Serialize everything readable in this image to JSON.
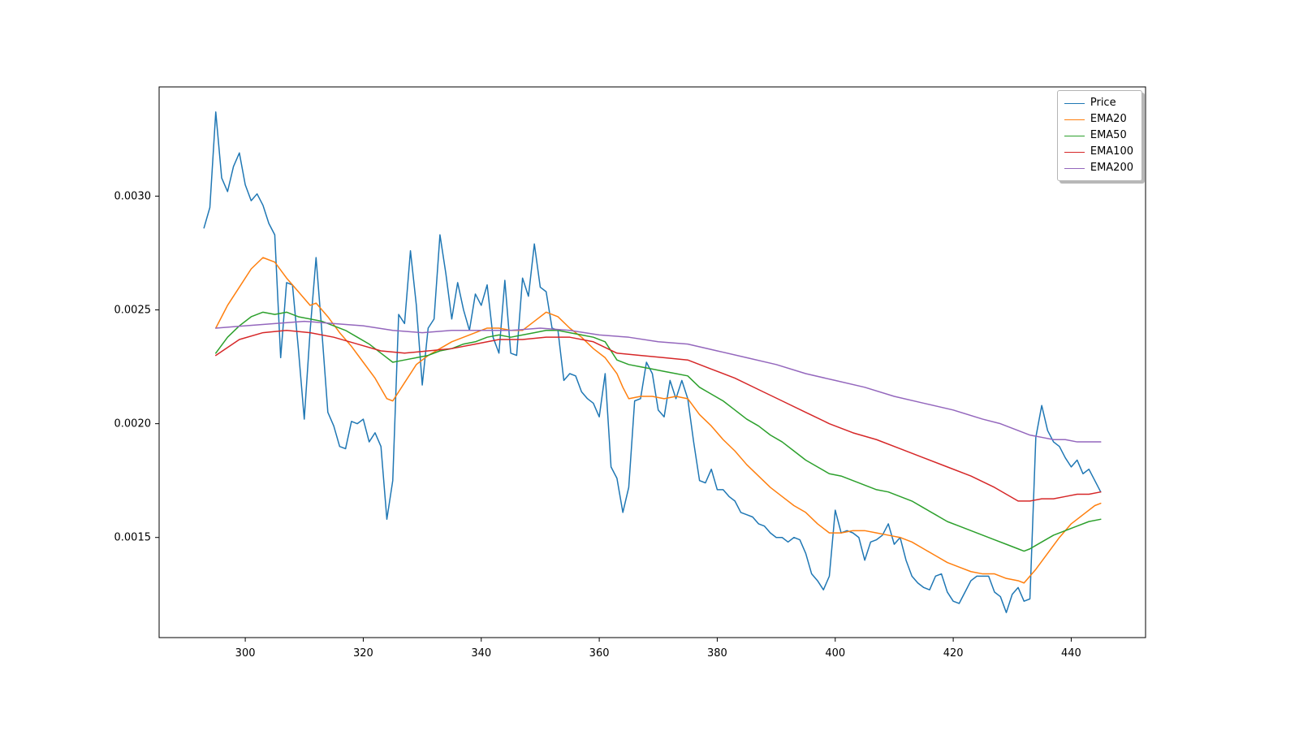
{
  "figure": {
    "background": "#ffffff",
    "axis_color": "#000000",
    "tick_font_size": 13,
    "legend_font_size": 13
  },
  "chart_data": {
    "type": "line",
    "title": "",
    "xlabel": "",
    "ylabel": "",
    "grid": false,
    "legend_position": "upper right",
    "xlim": [
      285.4,
      452.6
    ],
    "ylim": [
      0.00106,
      0.00348
    ],
    "x_ticks": [
      300,
      320,
      340,
      360,
      380,
      400,
      420,
      440
    ],
    "x_tick_labels": [
      "300",
      "320",
      "340",
      "360",
      "380",
      "400",
      "420",
      "440"
    ],
    "y_ticks": [
      0.0015,
      0.002,
      0.0025,
      0.003
    ],
    "y_tick_labels": [
      "0.0015",
      "0.0020",
      "0.0025",
      "0.0030"
    ],
    "series": [
      {
        "name": "Price",
        "color": "#1f77b4",
        "x_start": 293,
        "x_step": 1,
        "values": [
          0.00286,
          0.00295,
          0.00337,
          0.00308,
          0.00302,
          0.00313,
          0.00319,
          0.00305,
          0.00298,
          0.00301,
          0.00296,
          0.00288,
          0.00283,
          0.00229,
          0.00262,
          0.00261,
          0.00233,
          0.00202,
          0.00241,
          0.00273,
          0.0024,
          0.00205,
          0.00199,
          0.0019,
          0.00189,
          0.00201,
          0.002,
          0.00202,
          0.00192,
          0.00196,
          0.0019,
          0.00158,
          0.00175,
          0.00248,
          0.00244,
          0.00276,
          0.00252,
          0.00217,
          0.00242,
          0.00246,
          0.00283,
          0.00266,
          0.00246,
          0.00262,
          0.0025,
          0.00241,
          0.00257,
          0.00252,
          0.00261,
          0.00238,
          0.00231,
          0.00263,
          0.00231,
          0.0023,
          0.00264,
          0.00256,
          0.00279,
          0.0026,
          0.00258,
          0.00242,
          0.00241,
          0.00219,
          0.00222,
          0.00221,
          0.00214,
          0.00211,
          0.00209,
          0.00203,
          0.00222,
          0.00181,
          0.00176,
          0.00161,
          0.00172,
          0.0021,
          0.00211,
          0.00227,
          0.00222,
          0.00206,
          0.00203,
          0.00219,
          0.00211,
          0.00219,
          0.00211,
          0.00192,
          0.00175,
          0.00174,
          0.0018,
          0.00171,
          0.00171,
          0.00168,
          0.00166,
          0.00161,
          0.0016,
          0.00159,
          0.00156,
          0.00155,
          0.00152,
          0.0015,
          0.0015,
          0.00148,
          0.0015,
          0.00149,
          0.00143,
          0.00134,
          0.00131,
          0.00127,
          0.00133,
          0.00162,
          0.00152,
          0.00153,
          0.00152,
          0.0015,
          0.0014,
          0.00148,
          0.00149,
          0.00151,
          0.00156,
          0.00147,
          0.0015,
          0.0014,
          0.00133,
          0.0013,
          0.00128,
          0.00127,
          0.00133,
          0.00134,
          0.00126,
          0.00122,
          0.00121,
          0.00126,
          0.00131,
          0.00133,
          0.00133,
          0.00133,
          0.00126,
          0.00124,
          0.00117,
          0.00125,
          0.00128,
          0.00122,
          0.00123,
          0.00194,
          0.00208,
          0.00197,
          0.00192,
          0.0019,
          0.00185,
          0.00181,
          0.00184,
          0.00178,
          0.0018,
          0.00175,
          0.0017
        ]
      },
      {
        "name": "EMA20",
        "color": "#ff7f0e",
        "x": [
          295,
          297,
          299,
          301,
          303,
          305,
          307,
          309,
          311,
          312,
          314,
          316,
          318,
          320,
          322,
          324,
          325,
          327,
          329,
          331,
          333,
          335,
          337,
          339,
          341,
          343,
          345,
          347,
          349,
          351,
          353,
          355,
          357,
          359,
          361,
          363,
          364,
          365,
          367,
          369,
          371,
          373,
          375,
          377,
          379,
          381,
          383,
          385,
          387,
          389,
          391,
          393,
          395,
          397,
          399,
          401,
          403,
          405,
          407,
          409,
          411,
          413,
          415,
          417,
          419,
          421,
          423,
          425,
          427,
          429,
          431,
          432,
          434,
          436,
          438,
          440,
          442,
          444,
          445
        ],
        "y": [
          0.00242,
          0.00252,
          0.0026,
          0.00268,
          0.00273,
          0.00271,
          0.00264,
          0.00258,
          0.00252,
          0.00253,
          0.00247,
          0.0024,
          0.00234,
          0.00227,
          0.0022,
          0.00211,
          0.0021,
          0.00218,
          0.00226,
          0.0023,
          0.00233,
          0.00236,
          0.00238,
          0.0024,
          0.00242,
          0.00242,
          0.00241,
          0.00241,
          0.00245,
          0.00249,
          0.00247,
          0.00242,
          0.00238,
          0.00233,
          0.00229,
          0.00222,
          0.00216,
          0.00211,
          0.00212,
          0.00212,
          0.00211,
          0.00212,
          0.00211,
          0.00204,
          0.00199,
          0.00193,
          0.00188,
          0.00182,
          0.00177,
          0.00172,
          0.00168,
          0.00164,
          0.00161,
          0.00156,
          0.00152,
          0.00152,
          0.00153,
          0.00153,
          0.00152,
          0.00151,
          0.0015,
          0.00148,
          0.00145,
          0.00142,
          0.00139,
          0.00137,
          0.00135,
          0.00134,
          0.00134,
          0.00132,
          0.00131,
          0.0013,
          0.00136,
          0.00143,
          0.0015,
          0.00156,
          0.0016,
          0.00164,
          0.00165
        ]
      },
      {
        "name": "EMA50",
        "color": "#2ca02c",
        "x": [
          295,
          297,
          299,
          301,
          303,
          305,
          307,
          309,
          311,
          313,
          315,
          317,
          319,
          321,
          323,
          325,
          327,
          329,
          331,
          333,
          335,
          337,
          339,
          341,
          343,
          345,
          347,
          349,
          351,
          353,
          355,
          357,
          359,
          361,
          363,
          365,
          367,
          369,
          371,
          373,
          375,
          377,
          379,
          381,
          383,
          385,
          387,
          389,
          391,
          393,
          395,
          397,
          399,
          401,
          403,
          405,
          407,
          409,
          411,
          413,
          415,
          417,
          419,
          421,
          423,
          425,
          427,
          429,
          431,
          432,
          433,
          435,
          437,
          439,
          441,
          443,
          445
        ],
        "y": [
          0.00231,
          0.00238,
          0.00243,
          0.00247,
          0.00249,
          0.00248,
          0.00249,
          0.00247,
          0.00246,
          0.00245,
          0.00243,
          0.00241,
          0.00238,
          0.00235,
          0.00231,
          0.00227,
          0.00228,
          0.00229,
          0.0023,
          0.00232,
          0.00233,
          0.00235,
          0.00236,
          0.00238,
          0.00239,
          0.00238,
          0.00239,
          0.0024,
          0.00241,
          0.00241,
          0.0024,
          0.00239,
          0.00238,
          0.00236,
          0.00228,
          0.00226,
          0.00225,
          0.00224,
          0.00223,
          0.00222,
          0.00221,
          0.00216,
          0.00213,
          0.0021,
          0.00206,
          0.00202,
          0.00199,
          0.00195,
          0.00192,
          0.00188,
          0.00184,
          0.00181,
          0.00178,
          0.00177,
          0.00175,
          0.00173,
          0.00171,
          0.0017,
          0.00168,
          0.00166,
          0.00163,
          0.0016,
          0.00157,
          0.00155,
          0.00153,
          0.00151,
          0.00149,
          0.00147,
          0.00145,
          0.00144,
          0.00145,
          0.00148,
          0.00151,
          0.00153,
          0.00155,
          0.00157,
          0.00158
        ]
      },
      {
        "name": "EMA100",
        "color": "#d62728",
        "x": [
          295,
          299,
          303,
          307,
          311,
          315,
          319,
          323,
          327,
          331,
          335,
          339,
          343,
          347,
          351,
          355,
          359,
          363,
          367,
          371,
          375,
          379,
          383,
          387,
          391,
          395,
          399,
          403,
          407,
          411,
          415,
          419,
          423,
          427,
          429,
          431,
          433,
          435,
          437,
          439,
          441,
          443,
          445
        ],
        "y": [
          0.0023,
          0.00237,
          0.0024,
          0.00241,
          0.0024,
          0.00238,
          0.00235,
          0.00232,
          0.00231,
          0.00232,
          0.00233,
          0.00235,
          0.00237,
          0.00237,
          0.00238,
          0.00238,
          0.00236,
          0.00231,
          0.0023,
          0.00229,
          0.00228,
          0.00224,
          0.0022,
          0.00215,
          0.0021,
          0.00205,
          0.002,
          0.00196,
          0.00193,
          0.00189,
          0.00185,
          0.00181,
          0.00177,
          0.00172,
          0.00169,
          0.00166,
          0.00166,
          0.00167,
          0.00167,
          0.00168,
          0.00169,
          0.00169,
          0.0017
        ]
      },
      {
        "name": "EMA200",
        "color": "#9467bd",
        "x": [
          295,
          300,
          305,
          310,
          315,
          320,
          325,
          330,
          335,
          340,
          345,
          350,
          355,
          360,
          365,
          370,
          375,
          380,
          385,
          390,
          395,
          400,
          405,
          410,
          415,
          420,
          425,
          428,
          431,
          433,
          435,
          437,
          439,
          441,
          443,
          445
        ],
        "y": [
          0.00242,
          0.00243,
          0.00244,
          0.00245,
          0.00244,
          0.00243,
          0.00241,
          0.0024,
          0.00241,
          0.00241,
          0.00241,
          0.00242,
          0.00241,
          0.00239,
          0.00238,
          0.00236,
          0.00235,
          0.00232,
          0.00229,
          0.00226,
          0.00222,
          0.00219,
          0.00216,
          0.00212,
          0.00209,
          0.00206,
          0.00202,
          0.002,
          0.00197,
          0.00195,
          0.00194,
          0.00193,
          0.00193,
          0.00192,
          0.00192,
          0.00192
        ]
      }
    ]
  }
}
